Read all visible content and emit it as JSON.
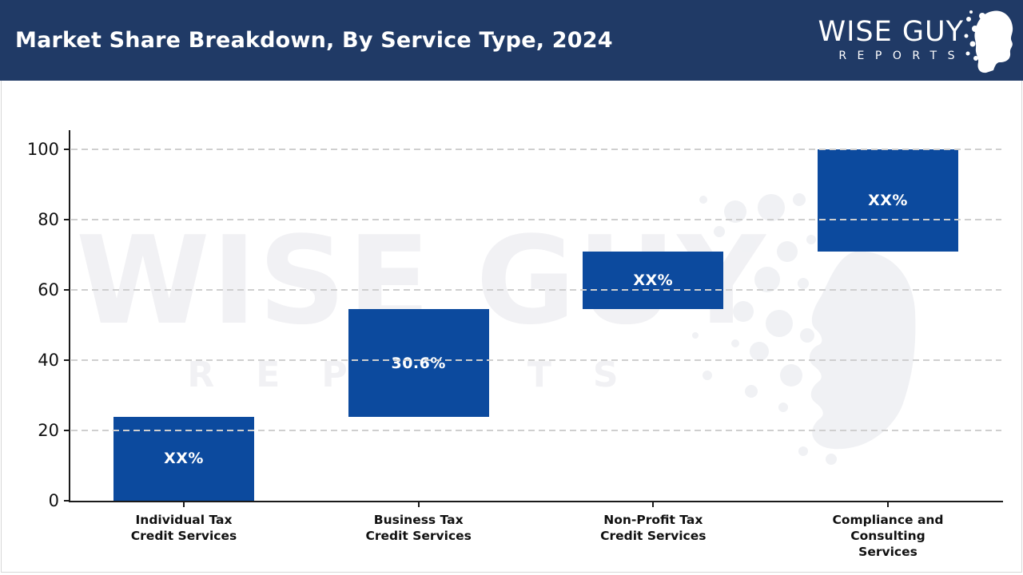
{
  "header": {
    "title": "Market Share Breakdown, By Service Type, 2024",
    "logo": {
      "line1": "WISE GUY",
      "line2": "REPORTS"
    }
  },
  "watermark": {
    "line1": "WISE GUY",
    "line2": "REPORTS"
  },
  "colors": {
    "header_bg": "#203a66",
    "bar": "#0c4a9e",
    "bar_label": "#ffffff",
    "grid": "#cfcfcf",
    "axis": "#1a1a1a",
    "watermark": "#f0f1f4"
  },
  "chart_data": {
    "type": "bar",
    "subtype": "waterfall",
    "title": "Market Share Breakdown, By Service Type, 2024",
    "xlabel": "",
    "ylabel": "",
    "ylim": [
      0,
      100
    ],
    "yticks": [
      0,
      20,
      40,
      60,
      80,
      100
    ],
    "grid": "horizontal-dashed",
    "legend": "none",
    "bar_color": "#0c4a9e",
    "categories": [
      "Individual Tax\nCredit Services",
      "Business Tax\nCredit Services",
      "Non-Profit Tax\nCredit Services",
      "Compliance and\nConsulting\nServices"
    ],
    "segments": [
      {
        "category": "Individual Tax Credit Services",
        "start": 0,
        "end": 23.9,
        "value_shown": "XX%"
      },
      {
        "category": "Business Tax Credit Services",
        "start": 23.9,
        "end": 54.5,
        "value_shown": "30.6%"
      },
      {
        "category": "Non-Profit Tax Credit Services",
        "start": 54.5,
        "end": 70.9,
        "value_shown": "XX%"
      },
      {
        "category": "Compliance and Consulting Services",
        "start": 70.9,
        "end": 100,
        "value_shown": "XX%"
      }
    ]
  }
}
